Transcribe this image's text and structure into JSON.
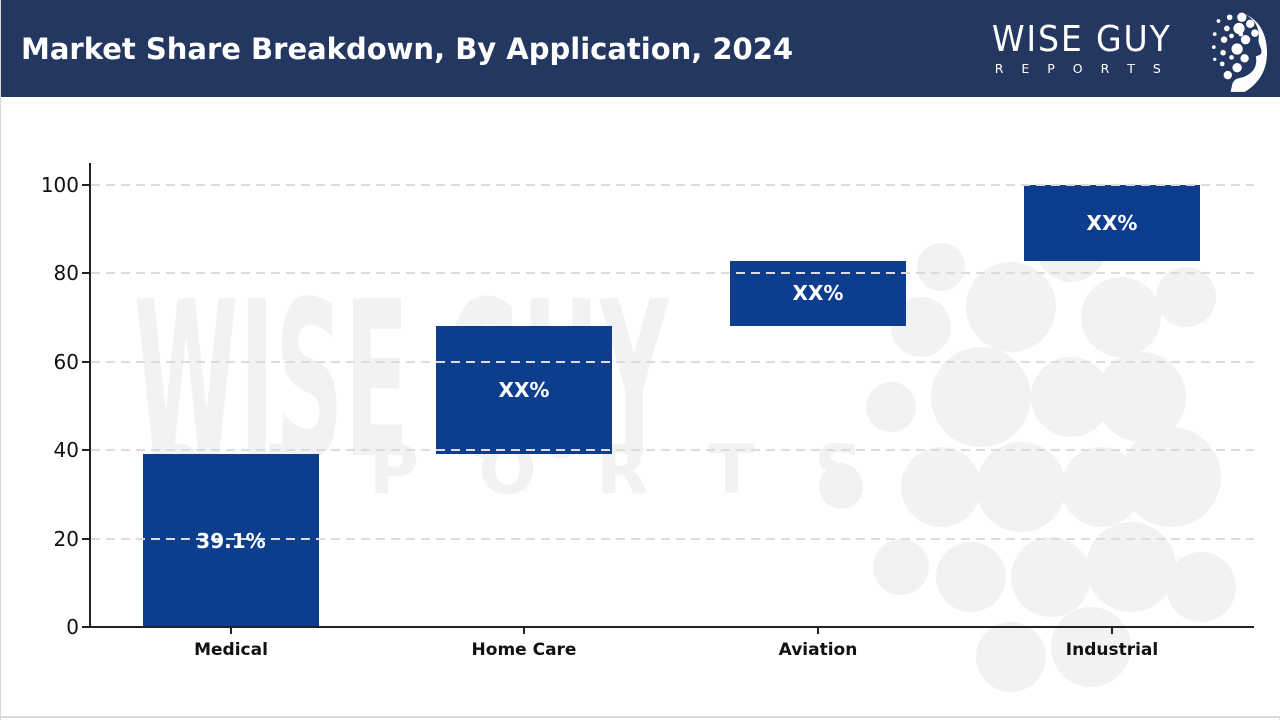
{
  "header": {
    "title": "Market Share Breakdown, By Application, 2024",
    "logo": {
      "line1": "WISE GUY",
      "line2": "R E P O R T S"
    }
  },
  "watermark": {
    "line1": "WISE GUY",
    "line2": "R E P O R T S"
  },
  "colors": {
    "header_bg": "#233760",
    "bar_fill": "#0d3e8d",
    "bar_label_text": "#ffffff",
    "gridline": "#dcdcdc",
    "axis": "#222222",
    "watermark": "#f2f2f2"
  },
  "chart_data": {
    "type": "bar",
    "subtype": "waterfall",
    "title": "Market Share Breakdown, By Application, 2024",
    "categories": [
      "Medical",
      "Home Care",
      "Aviation",
      "Industrial"
    ],
    "segments": [
      {
        "category": "Medical",
        "start": 0,
        "end": 39.1,
        "label": "39.1%"
      },
      {
        "category": "Home Care",
        "start": 39.1,
        "end": 68.2,
        "label": "XX%"
      },
      {
        "category": "Aviation",
        "start": 68.2,
        "end": 82.7,
        "label": "XX%"
      },
      {
        "category": "Industrial",
        "start": 82.7,
        "end": 100,
        "label": "XX%"
      }
    ],
    "xlabel": "",
    "ylabel": "",
    "ylim": [
      0,
      105
    ],
    "yticks": [
      0,
      20,
      40,
      60,
      80,
      100
    ],
    "grid": "dashed-horizontal",
    "legend": null
  }
}
